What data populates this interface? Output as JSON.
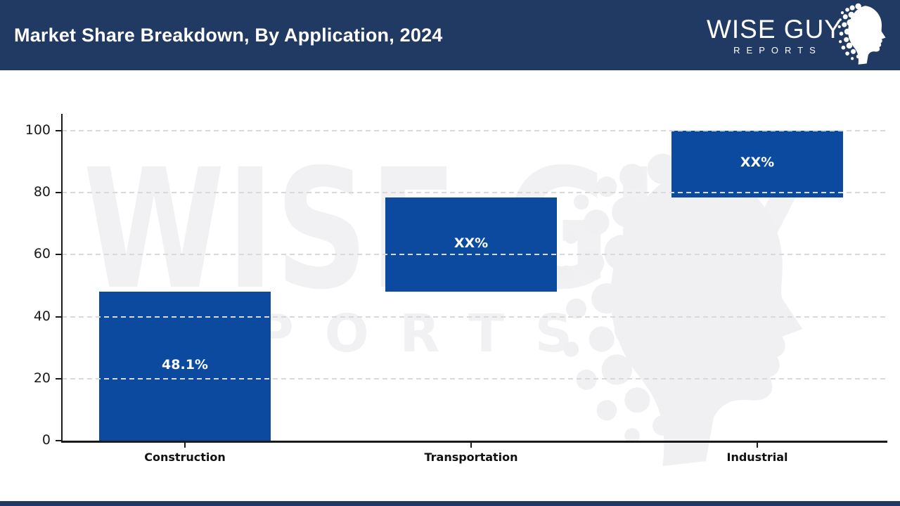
{
  "header": {
    "title": "Market Share Breakdown, By Application, 2024",
    "logo": {
      "line1": "WISE GUY",
      "line2": "REPORTS"
    },
    "bg_color": "#213a64"
  },
  "watermark": {
    "line1": "WISE GUY",
    "line2": "REPORTS"
  },
  "chart_data": {
    "type": "bar",
    "subtype": "waterfall",
    "title": "Market Share Breakdown, By Application, 2024",
    "categories": [
      "Construction",
      "Transportation",
      "Industrial"
    ],
    "segments": [
      {
        "category": "Construction",
        "start": 0,
        "end": 48.1,
        "label": "48.1%"
      },
      {
        "category": "Transportation",
        "start": 48.1,
        "end": 78.5,
        "label": "XX%"
      },
      {
        "category": "Industrial",
        "start": 78.5,
        "end": 100,
        "label": "XX%"
      }
    ],
    "bar_color": "#0b4a9f",
    "label_color": "#ffffff",
    "yticks": [
      0,
      20,
      40,
      60,
      80,
      100
    ],
    "ylim": [
      0,
      106
    ],
    "xlabel": "",
    "ylabel": "",
    "grid": "dashed horizontal, drawn over bars",
    "gridline_color": "#d9d9d9",
    "legend": "none"
  }
}
